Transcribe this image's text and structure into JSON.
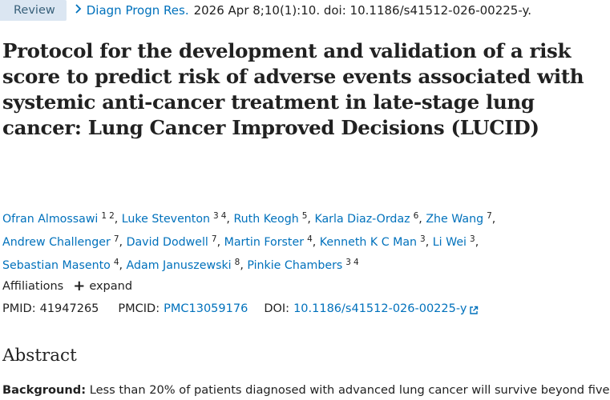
{
  "header": {
    "badge": "Review",
    "journal": "Diagn Progn Res.",
    "citation": "2026 Apr 8;10(1):10. doi: 10.1186/s41512-026-00225-y."
  },
  "title": "Protocol for the development and validation of a risk score to predict risk of adverse events associated with systemic anti-cancer treatment in late-stage lung cancer: Lung Cancer Improved Decisions (LUCID)",
  "authors": [
    {
      "name": "Ofran Almossawi",
      "sups": [
        "1",
        "2"
      ]
    },
    {
      "name": "Luke Steventon",
      "sups": [
        "3",
        "4"
      ]
    },
    {
      "name": "Ruth Keogh",
      "sups": [
        "5"
      ]
    },
    {
      "name": "Karla Diaz-Ordaz",
      "sups": [
        "6"
      ]
    },
    {
      "name": "Zhe Wang",
      "sups": [
        "7"
      ]
    },
    {
      "name": "Andrew Challenger",
      "sups": [
        "7"
      ]
    },
    {
      "name": "David Dodwell",
      "sups": [
        "7"
      ]
    },
    {
      "name": "Martin Forster",
      "sups": [
        "4"
      ]
    },
    {
      "name": "Kenneth K C Man",
      "sups": [
        "3"
      ]
    },
    {
      "name": "Li Wei",
      "sups": [
        "3"
      ]
    },
    {
      "name": "Sebastian Masento",
      "sups": [
        "4"
      ]
    },
    {
      "name": "Adam Januszewski",
      "sups": [
        "8"
      ]
    },
    {
      "name": "Pinkie Chambers",
      "sups": [
        "3",
        "4"
      ]
    }
  ],
  "affiliations": {
    "label": "Affiliations",
    "expand_label": "expand"
  },
  "ids": {
    "pmid_label": "PMID:",
    "pmid": "41947265",
    "pmcid_label": "PMCID:",
    "pmcid": "PMC13059176",
    "doi_label": "DOI:",
    "doi": "10.1186/s41512-026-00225-y"
  },
  "abstract": {
    "heading": "Abstract",
    "background_label": "Background:",
    "background_text": "Less than 20% of patients diagnosed with advanced lung cancer will survive beyond five"
  },
  "icons": {
    "journal_chevron": "chevron-right-icon",
    "expand": "plus-icon",
    "doi_external": "external-link-icon"
  },
  "colors": {
    "link": "#0071bc",
    "badge_bg": "#dbe6f2",
    "badge_text": "#38607a",
    "text": "#212121"
  }
}
